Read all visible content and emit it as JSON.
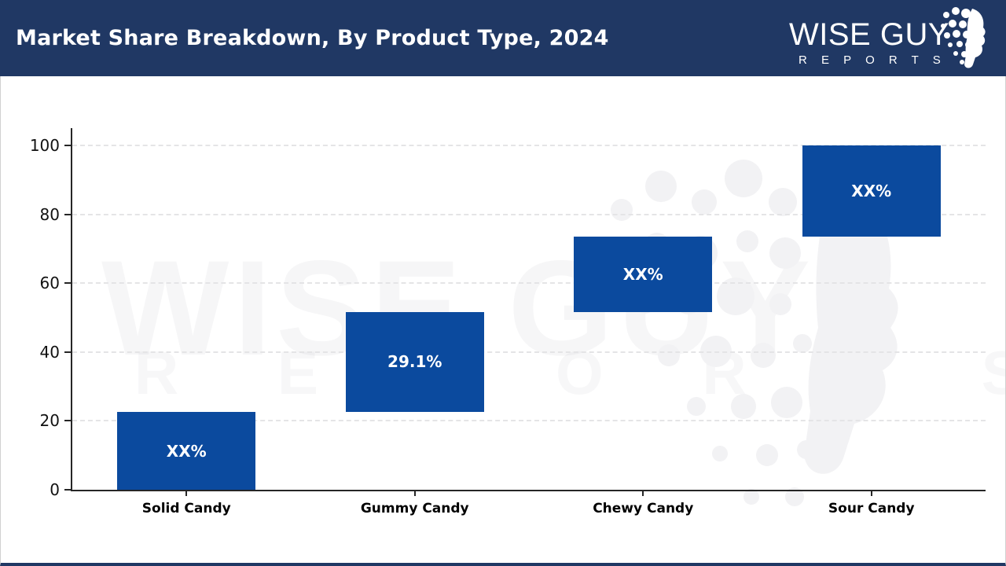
{
  "header": {
    "title": "Market Share Breakdown, By Product Type, 2024",
    "logo": {
      "line1": "WISE GUY",
      "line2": "R E P O R T S"
    }
  },
  "watermark": {
    "line1": "WISE GUY",
    "line2": "R E P O R T S"
  },
  "chart_data": {
    "type": "waterfall",
    "title": "Market Share Breakdown, By Product Type, 2024",
    "categories": [
      "Solid Candy",
      "Gummy Candy",
      "Chewy Candy",
      "Sour Candy"
    ],
    "segments": [
      {
        "category": "Solid Candy",
        "start": 0,
        "end": 22.6,
        "label": "XX%"
      },
      {
        "category": "Gummy Candy",
        "start": 22.6,
        "end": 51.7,
        "label": "29.1%"
      },
      {
        "category": "Chewy Candy",
        "start": 51.7,
        "end": 73.4,
        "label": "XX%"
      },
      {
        "category": "Sour Candy",
        "start": 73.4,
        "end": 100,
        "label": "XX%"
      }
    ],
    "yticks": [
      0,
      20,
      40,
      60,
      80,
      100
    ],
    "ylim": [
      0,
      105
    ],
    "grid": true,
    "legend": false,
    "colors": {
      "bar": "#0b4a9e",
      "bar_label": "#ffffff",
      "axis": "#262626",
      "grid": "#e4e4e6",
      "header_bg": "#203864",
      "header_text": "#ffffff",
      "watermark": "#f2f2f4"
    }
  }
}
